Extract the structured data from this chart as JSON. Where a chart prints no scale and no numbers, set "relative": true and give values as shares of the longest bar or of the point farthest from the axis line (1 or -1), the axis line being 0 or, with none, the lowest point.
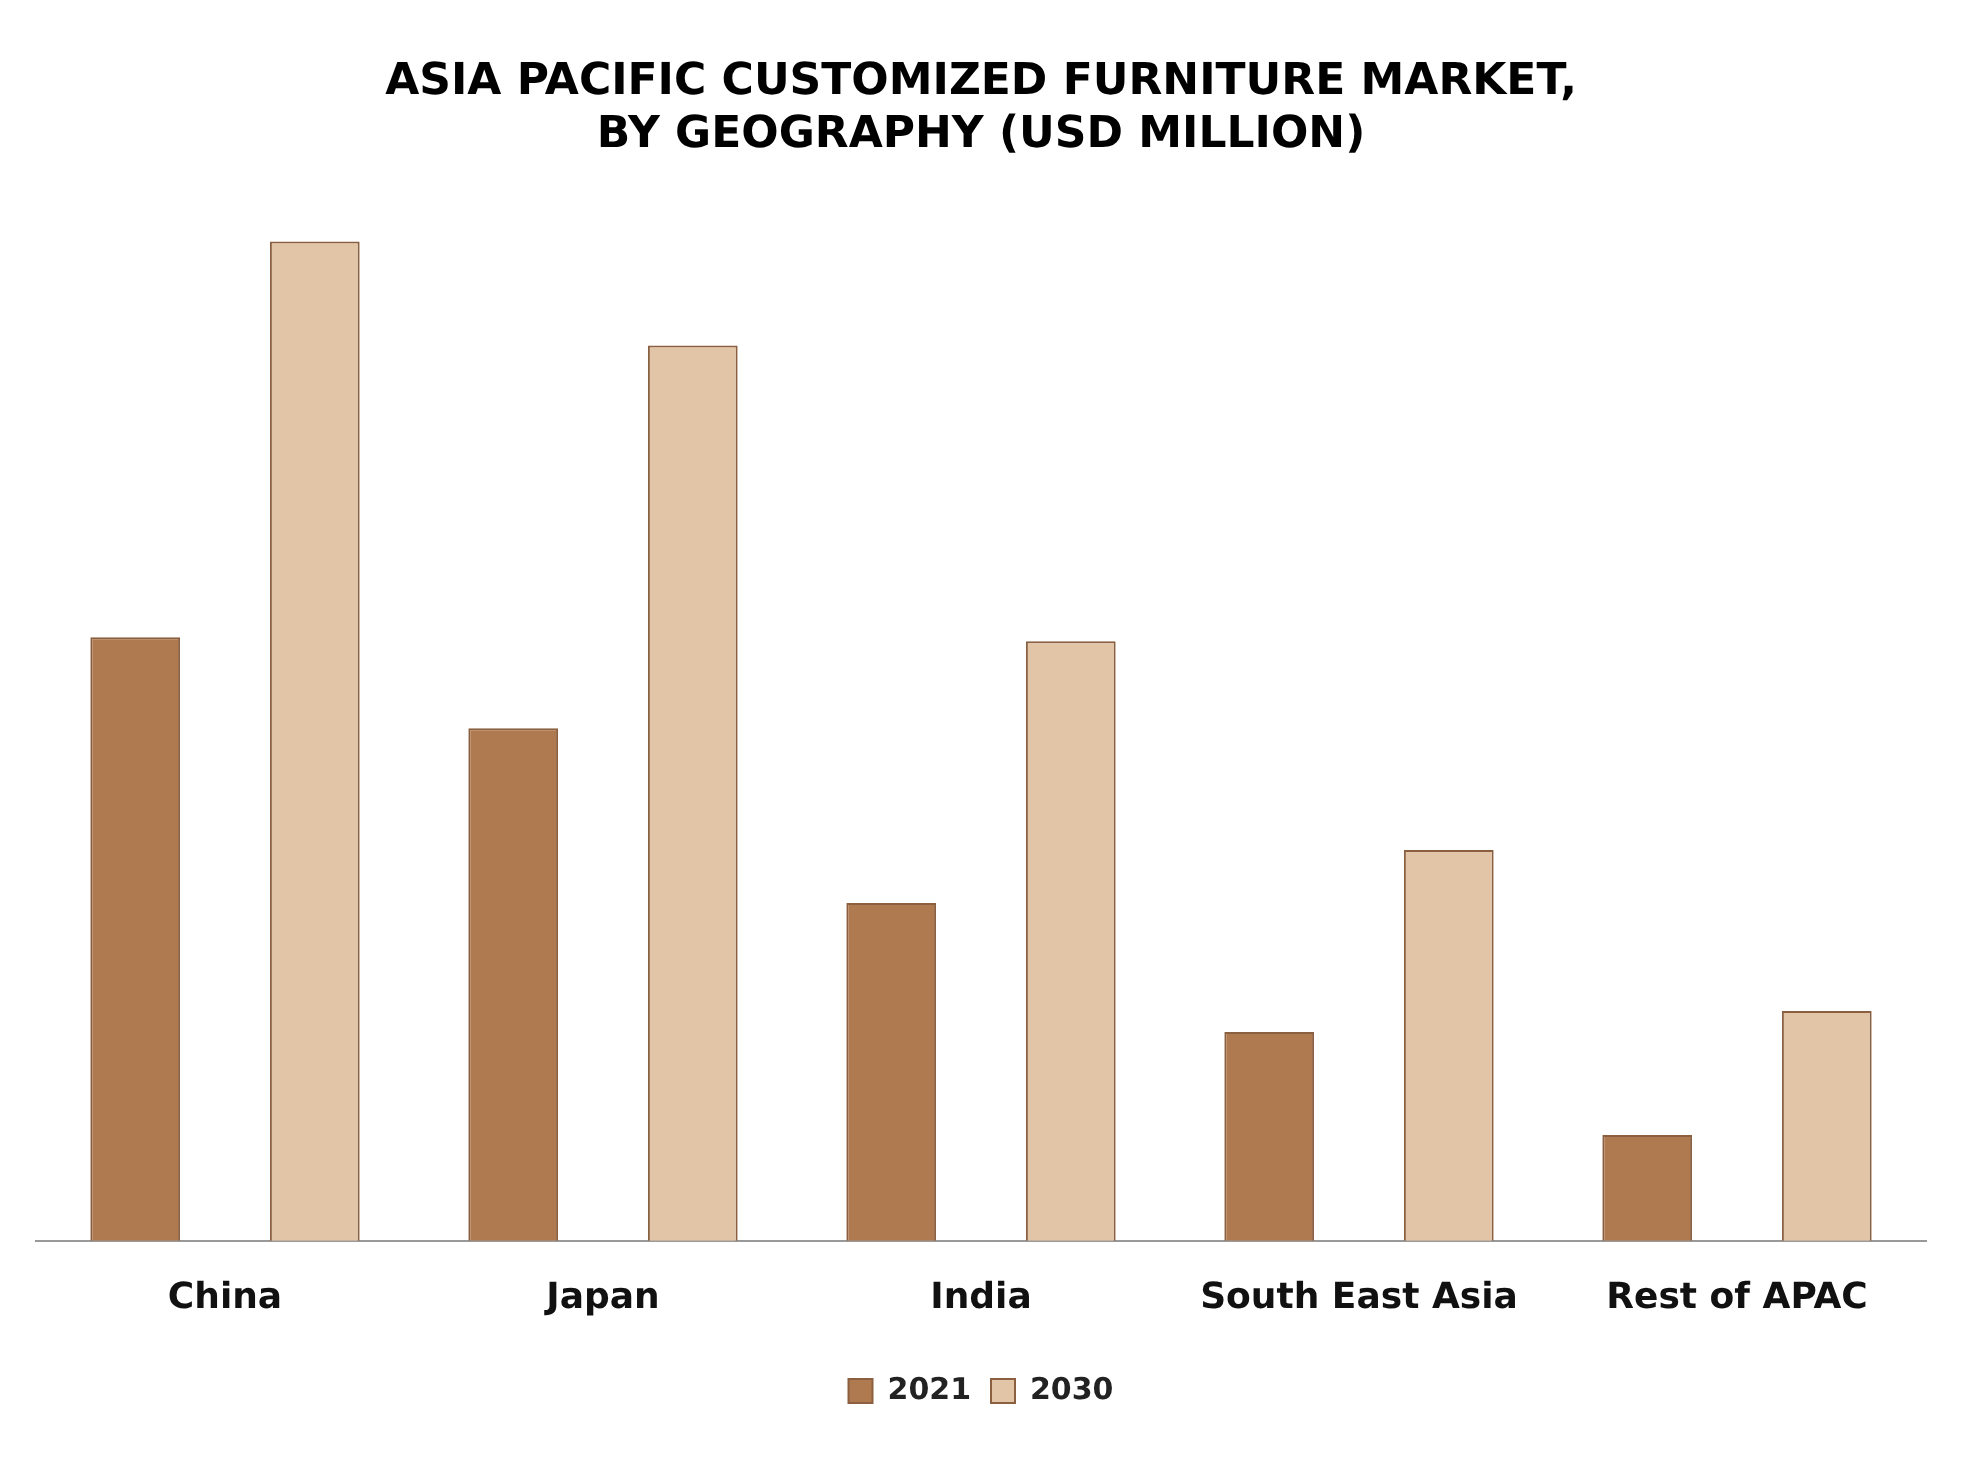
{
  "chart_data": {
    "type": "bar",
    "title": "ASIA PACIFIC CUSTOMIZED FURNITURE MARKET,\nBY GEOGRAPHY (USD MILLION)",
    "categories": [
      "China",
      "Japan",
      "India",
      "South East Asia",
      "Rest of APAC"
    ],
    "relative": true,
    "legend": "bottom",
    "grid": false,
    "series": [
      {
        "name": "2021",
        "color": "#b07a50",
        "values": [
          0.604,
          0.513,
          0.338,
          0.209,
          0.106
        ]
      },
      {
        "name": "2030",
        "color": "#e2c4a6",
        "values": [
          1,
          0.896,
          0.6,
          0.391,
          0.23
        ]
      }
    ]
  }
}
